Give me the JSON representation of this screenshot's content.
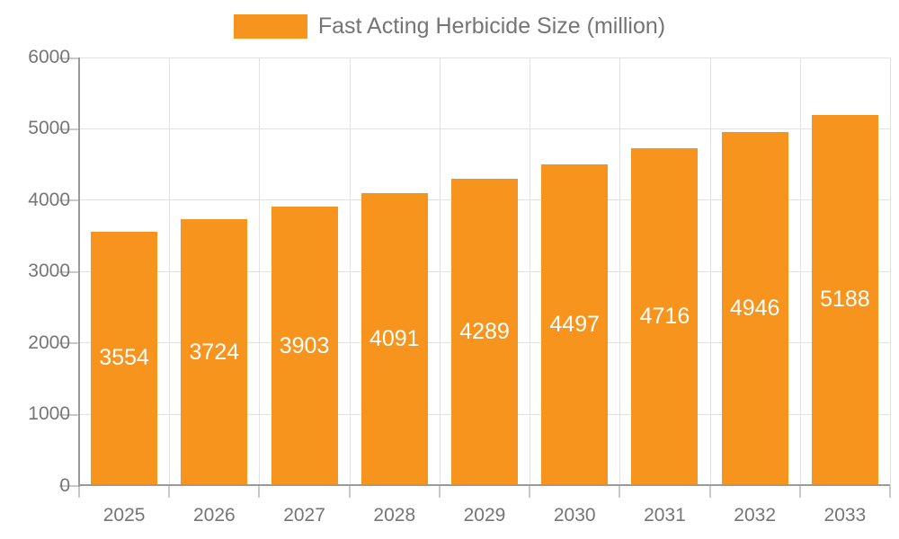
{
  "legend": {
    "label": "Fast Acting Herbicide Size (million)",
    "position": "top"
  },
  "colors": {
    "bar": "#F7941E",
    "grid": "#E2E2E2",
    "axis": "#9A9A9A",
    "tick": "#C9C9C9",
    "text": "#757575",
    "bar_label": "#FFFFFF",
    "background": "#FFFFFF"
  },
  "chart_data": {
    "type": "bar",
    "title": "Fast Acting Herbicide Size (million)",
    "categories": [
      "2025",
      "2026",
      "2027",
      "2028",
      "2029",
      "2030",
      "2031",
      "2032",
      "2033"
    ],
    "values": [
      3554,
      3724,
      3903,
      4091,
      4289,
      4497,
      4716,
      4946,
      5188
    ],
    "series_name": "Fast Acting Herbicide Size (million)",
    "xlabel": "",
    "ylabel": "",
    "ylim": [
      0,
      6000
    ],
    "yticks": [
      0,
      1000,
      2000,
      3000,
      4000,
      5000,
      6000
    ],
    "grid": true,
    "legend_position": "top",
    "bar_label_position": "inside-center"
  }
}
